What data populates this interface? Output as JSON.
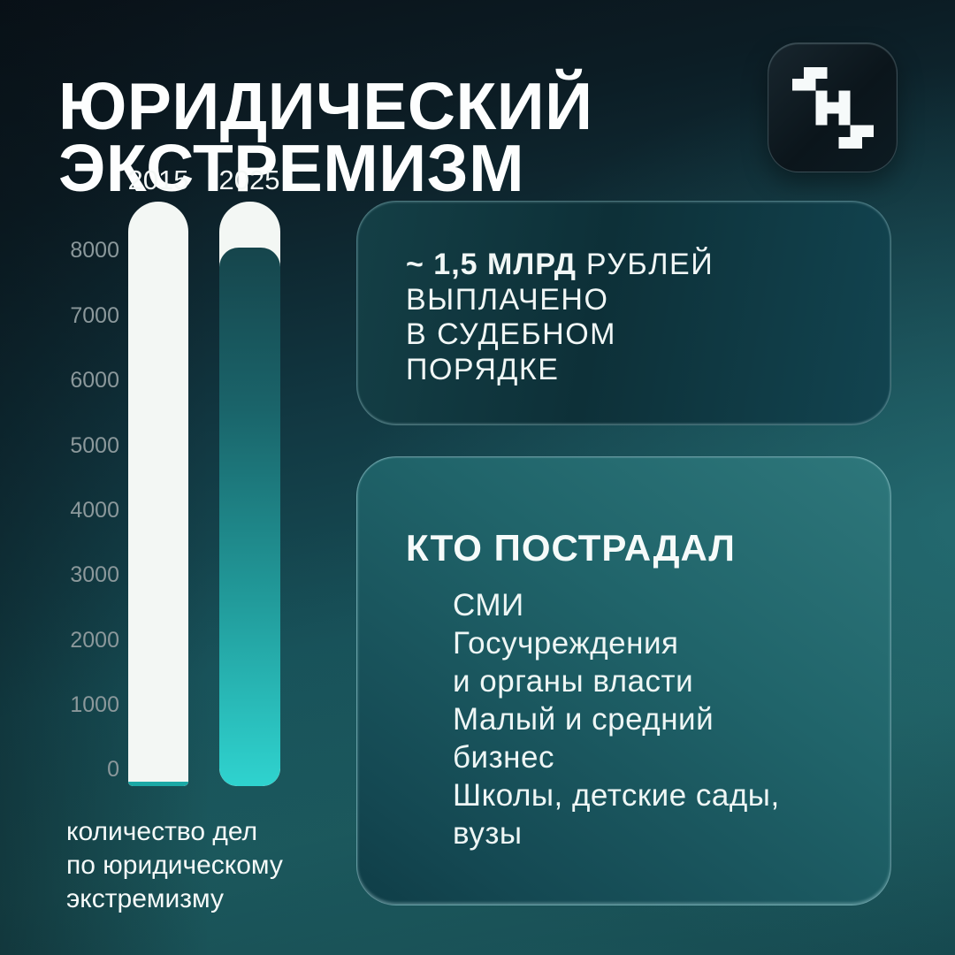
{
  "header": {
    "title_line1": "ЮРИДИЧЕСКИЙ",
    "title_line2": "ЭКСТРЕМИЗМ",
    "logo_icon": "pixel-h-logo"
  },
  "chart_data": {
    "type": "bar",
    "title": "",
    "categories": [
      "2015",
      "2025"
    ],
    "values": [
      70,
      8300
    ],
    "yticks": [
      "8000",
      "7000",
      "6000",
      "5000",
      "4000",
      "3000",
      "2000",
      "1000",
      "0"
    ],
    "ylim": [
      0,
      8000
    ],
    "grid": "off",
    "legend": "none",
    "ylabel_lines": [
      "количество дел",
      "по юридическому",
      "экстремизму"
    ],
    "track_color": "#f3f7f4",
    "fill_color_low": "#1ca9a6",
    "fill_gradient": [
      "#16454c",
      "#2fd3cf"
    ]
  },
  "cards": {
    "payout": {
      "amount_bold": "~ 1,5 МЛРД",
      "line1_rest": " РУБЛЕЙ",
      "lines": [
        "ВЫПЛАЧЕНО",
        "В СУДЕБНОМ",
        "ПОРЯДКЕ"
      ]
    },
    "victims": {
      "heading": "КТО ПОСТРАДАЛ",
      "bullet_icon": "dot-bullet",
      "items": [
        {
          "lines": [
            "СМИ",
            ""
          ]
        },
        {
          "lines": [
            "Госучреждения",
            "и органы власти"
          ]
        },
        {
          "lines": [
            "Малый и средний",
            "бизнес"
          ]
        },
        {
          "lines": [
            "Школы, детские сады,",
            "вузы"
          ]
        }
      ]
    }
  },
  "colors": {
    "accent_turquoise": "#2fd3cf",
    "background_teal": "#195257",
    "background_dark": "#0a1219",
    "tick_gray": "#8b989b",
    "text_white": "#f1f7f6"
  }
}
